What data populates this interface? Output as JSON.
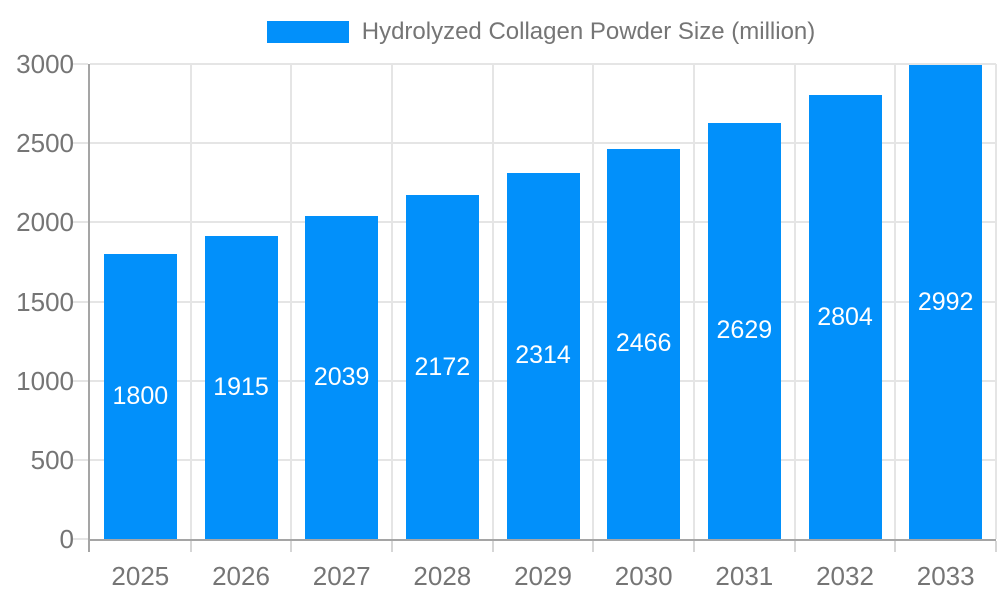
{
  "chart_data": {
    "type": "bar",
    "title": "Hydrolyzed Collagen Powder Size (million)",
    "legend": [
      "Hydrolyzed Collagen Powder Size (million)"
    ],
    "legend_position": "top-center",
    "categories": [
      "2025",
      "2026",
      "2027",
      "2028",
      "2029",
      "2030",
      "2031",
      "2032",
      "2033"
    ],
    "values": [
      1800,
      1915,
      2039,
      2172,
      2314,
      2466,
      2629,
      2804,
      2992
    ],
    "xlabel": "",
    "ylabel": "",
    "ylim": [
      0,
      3000
    ],
    "yticks": [
      0,
      500,
      1000,
      1500,
      2000,
      2500,
      3000
    ],
    "grid": true,
    "colors": {
      "bar": "#0290fa",
      "value_label": "#ffffff",
      "axis_text": "#757575",
      "grid_line": "#e5e5e5",
      "axis_line": "#a5a5a5",
      "background": "#ffffff"
    }
  }
}
